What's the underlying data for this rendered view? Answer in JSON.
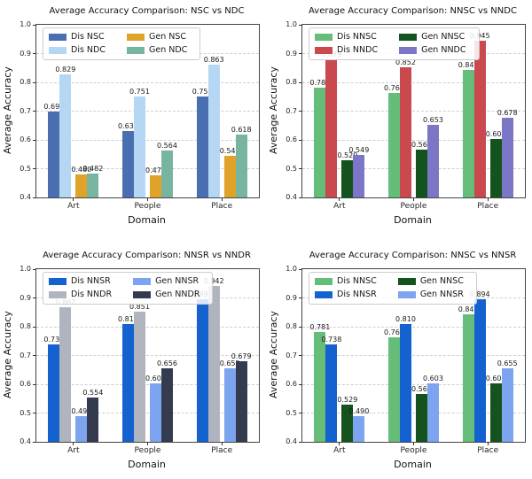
{
  "figure": {
    "background": "#ffffff",
    "grid_rows": 2,
    "grid_cols": 2
  },
  "chart_data": [
    {
      "type": "bar",
      "title": "Average Accuracy Comparison: NSC vs NDC",
      "xlabel": "Domain",
      "ylabel": "Average Accuracy",
      "categories": [
        "Art",
        "People",
        "Place"
      ],
      "ylim": [
        0.4,
        1.0
      ],
      "ytick_step": 0.1,
      "yticks": [
        "1.0",
        "0.9",
        "0.8",
        "0.7",
        "0.6",
        "0.5",
        "0.4"
      ],
      "grid": true,
      "legend_position": "upper-left",
      "legend_columns": 2,
      "series": [
        {
          "name": "Dis NSC",
          "color": "#4a6fb0",
          "values": [
            0.698,
            0.63,
            0.751
          ]
        },
        {
          "name": "Dis NDC",
          "color": "#b5d7f4",
          "values": [
            0.829,
            0.751,
            0.863
          ]
        },
        {
          "name": "Gen NSC",
          "color": "#dfa32a",
          "values": [
            0.48,
            0.476,
            0.545
          ]
        },
        {
          "name": "Gen NDC",
          "color": "#78b5a0",
          "values": [
            0.482,
            0.564,
            0.618
          ]
        }
      ]
    },
    {
      "type": "bar",
      "title": "Average Accuracy Comparison: NNSC vs NNDC",
      "xlabel": "Domain",
      "ylabel": "Average Accuracy",
      "categories": [
        "Art",
        "People",
        "Place"
      ],
      "ylim": [
        0.4,
        1.0
      ],
      "ytick_step": 0.1,
      "yticks": [
        "1.0",
        "0.9",
        "0.8",
        "0.7",
        "0.6",
        "0.5",
        "0.4"
      ],
      "grid": true,
      "legend_position": "upper-left",
      "legend_columns": 2,
      "series": [
        {
          "name": "Dis NNSC",
          "color": "#66bd79",
          "values": [
            0.781,
            0.763,
            0.842
          ]
        },
        {
          "name": "Dis NNDC",
          "color": "#c9494e",
          "values": [
            0.879,
            0.852,
            0.945
          ]
        },
        {
          "name": "Gen NNSC",
          "color": "#14531d",
          "values": [
            0.529,
            0.565,
            0.604
          ]
        },
        {
          "name": "Gen NNDC",
          "color": "#7b76c6",
          "values": [
            0.549,
            0.653,
            0.678
          ]
        }
      ]
    },
    {
      "type": "bar",
      "title": "Average Accuracy Comparison: NNSR vs NNDR",
      "xlabel": "Domain",
      "ylabel": "Average Accuracy",
      "categories": [
        "Art",
        "People",
        "Place"
      ],
      "ylim": [
        0.4,
        1.0
      ],
      "ytick_step": 0.1,
      "yticks": [
        "1.0",
        "0.9",
        "0.8",
        "0.7",
        "0.6",
        "0.5",
        "0.4"
      ],
      "grid": true,
      "legend_position": "upper-left",
      "legend_columns": 2,
      "series": [
        {
          "name": "Dis NNSR",
          "color": "#1362cf",
          "values": [
            0.738,
            0.81,
            0.894
          ]
        },
        {
          "name": "Dis NNDR",
          "color": "#b0b4bf",
          "values": [
            0.867,
            0.851,
            0.942
          ]
        },
        {
          "name": "Gen NNSR",
          "color": "#7da4ee",
          "values": [
            0.49,
            0.603,
            0.655
          ]
        },
        {
          "name": "Gen NNDR",
          "color": "#343b4e",
          "values": [
            0.554,
            0.656,
            0.679
          ]
        }
      ]
    },
    {
      "type": "bar",
      "title": "Average Accuracy Comparison: NNSC vs NNSR",
      "xlabel": "Domain",
      "ylabel": "Average Accuracy",
      "categories": [
        "Art",
        "People",
        "Place"
      ],
      "ylim": [
        0.4,
        1.0
      ],
      "ytick_step": 0.1,
      "yticks": [
        "1.0",
        "0.9",
        "0.8",
        "0.7",
        "0.6",
        "0.5",
        "0.4"
      ],
      "grid": true,
      "legend_position": "upper-left",
      "legend_columns": 2,
      "series": [
        {
          "name": "Dis NNSC",
          "color": "#66bd79",
          "values": [
            0.781,
            0.763,
            0.842
          ]
        },
        {
          "name": "Dis NNSR",
          "color": "#1362cf",
          "values": [
            0.738,
            0.81,
            0.894
          ]
        },
        {
          "name": "Gen NNSC",
          "color": "#14531d",
          "values": [
            0.529,
            0.565,
            0.604
          ]
        },
        {
          "name": "Gen NNSR",
          "color": "#7da4ee",
          "values": [
            0.49,
            0.603,
            0.655
          ]
        }
      ]
    }
  ]
}
